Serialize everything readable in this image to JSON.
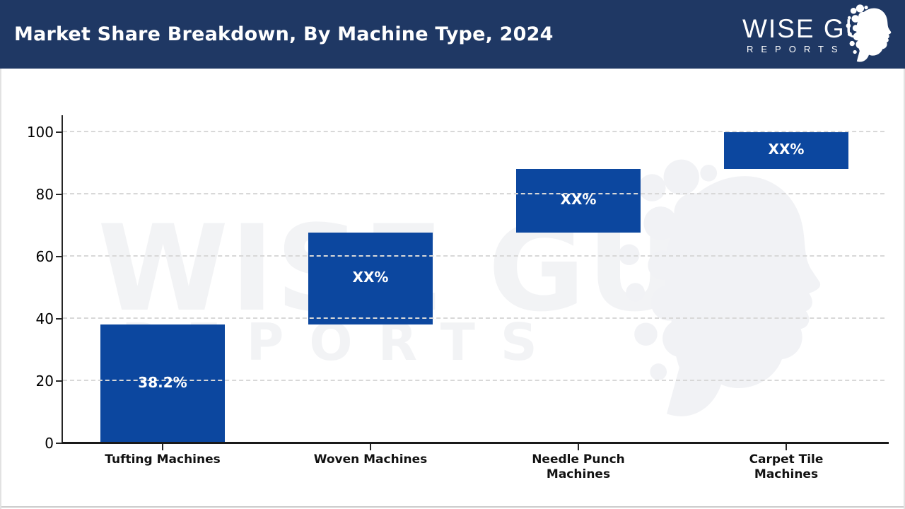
{
  "header": {
    "title": "Market Share Breakdown, By Machine Type, 2024",
    "logo_line1": "WISE GUY",
    "logo_line2": "REPORTS",
    "bg_color": "#1f3864"
  },
  "watermark": {
    "line1": "WISE GUY",
    "line2": "REPORTS"
  },
  "chart_data": {
    "type": "bar",
    "variant": "waterfall",
    "title": "Market Share Breakdown, By Machine Type, 2024",
    "categories": [
      "Tufting Machines",
      "Woven Machines",
      "Needle Punch\nMachines",
      "Carpet Tile\nMachines"
    ],
    "bar_labels": [
      "38.2%",
      "XX%",
      "XX%",
      "XX%"
    ],
    "bar_starts": [
      0,
      38.2,
      67.7,
      88.2
    ],
    "bar_ends": [
      38.2,
      67.7,
      88.2,
      100
    ],
    "segment_values": [
      38.2,
      29.5,
      20.5,
      11.8
    ],
    "yticks": [
      0,
      20,
      40,
      60,
      80,
      100
    ],
    "ylim": [
      0,
      105.5
    ],
    "xlabel": "",
    "ylabel": "",
    "legend": "none",
    "grid": "horizontal-dashed",
    "grid_color": "#d8d8d8",
    "bar_color": "#0c479f",
    "bar_label_color": "#ffffff",
    "axis_color": "#262626"
  }
}
